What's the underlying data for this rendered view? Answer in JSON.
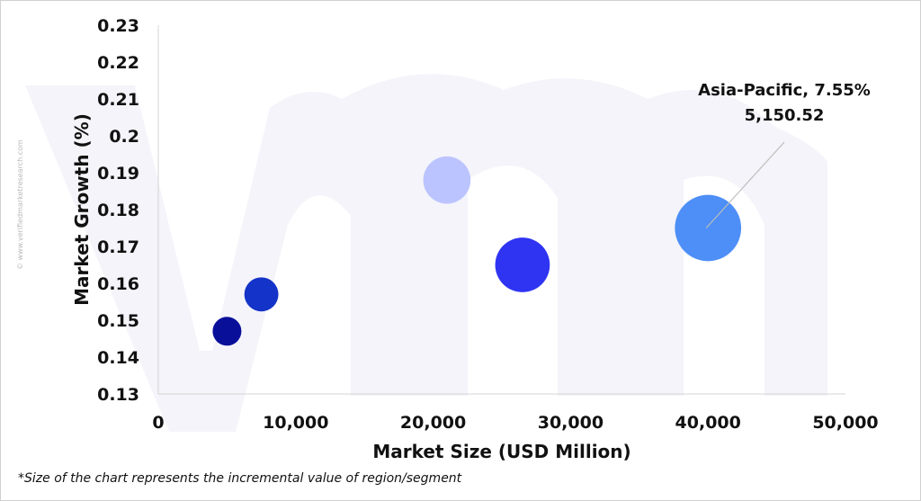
{
  "watermark": {
    "side_text": "© www.verifiedmarketresearch.com"
  },
  "chart_data": {
    "type": "scatter",
    "title": "",
    "xlabel": "Market Size (USD Million)",
    "ylabel": "Market Growth (%)",
    "xlim": [
      0,
      50000
    ],
    "ylim": [
      0.13,
      0.23
    ],
    "grid": false,
    "x_ticks": [
      "0",
      "10,000",
      "20,000",
      "30,000",
      "40,000",
      "50,000"
    ],
    "y_ticks": [
      "0.13",
      "0.14",
      "0.15",
      "0.16",
      "0.17",
      "0.18",
      "0.19",
      "0.2",
      "0.21",
      "0.22",
      "0.23"
    ],
    "points": [
      {
        "x": 5000,
        "y": 0.147,
        "size": 1,
        "color": "#0a0f9a"
      },
      {
        "x": 7500,
        "y": 0.157,
        "size": 1.4,
        "color": "#1433c8"
      },
      {
        "x": 21000,
        "y": 0.188,
        "size": 2.7,
        "color": "#bcc4ff"
      },
      {
        "x": 26500,
        "y": 0.165,
        "size": 3.6,
        "color": "#2f34f2"
      },
      {
        "x": 40000,
        "y": 0.175,
        "size": 5.3,
        "color": "#4d8ff7"
      }
    ],
    "annotation": {
      "point_index": 4,
      "line1": "Asia-Pacific, 7.55%",
      "line2": "5,150.52"
    },
    "footnote": "*Size of the chart represents the incremental value of region/segment"
  }
}
